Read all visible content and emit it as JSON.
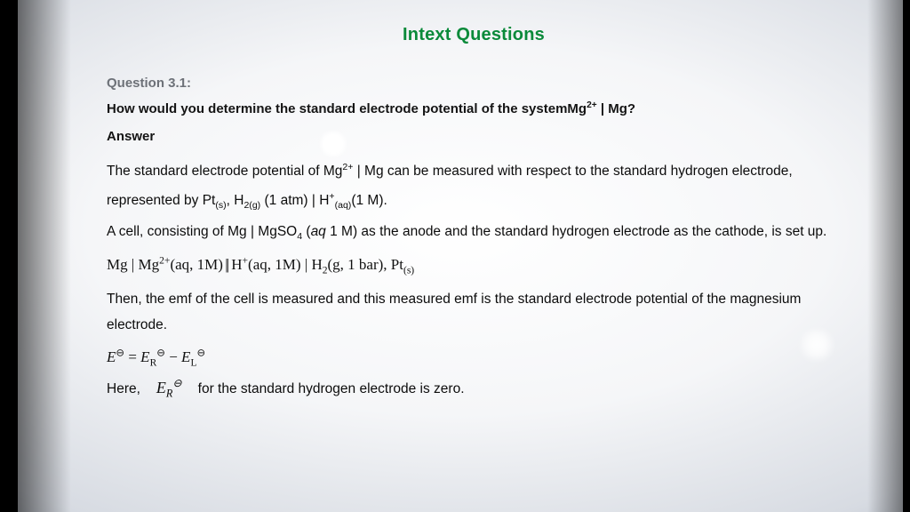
{
  "colors": {
    "title": "#0a8a3a",
    "question_number": "#6d7178",
    "body_text": "#0c0c0c",
    "page_bg_center": "#ffffff",
    "page_bg_edge": "#1c2028",
    "frame": "#000000"
  },
  "typography": {
    "body_family": "Verdana",
    "formula_family": "Cambria Math / Times New Roman",
    "title_size_pt": 15,
    "body_size_pt": 11.5,
    "line_height": 2.15
  },
  "title": "Intext Questions",
  "question_number": "Question 3.1:",
  "question_text_html": "How would you determine the standard electrode potential of the systemMg<sup>2+</sup> | Mg?",
  "answer_label": "Answer",
  "p1_html": "The standard electrode potential of Mg<sup>2+</sup> | Mg can be measured with respect to the standard hydrogen electrode, represented by Pt<sub>(s)</sub>, H<sub>2(g)</sub> (1 atm) | H<sup>+</sup><sub>(aq)</sub>(1 M).",
  "p2_html": "A cell, consisting of Mg | MgSO<sub>4</sub> (<i>aq</i> 1 M) as the anode and the standard hydrogen electrode as the cathode, is set up.",
  "cell_notation_html": "Mg<span class=\"vbar\"> | </span>Mg<sup>2+</sup>(aq, 1M)<span class=\"dvbar\"> || </span>H<sup>+</sup>(aq, 1M)<span class=\"vbar\"> | </span>H<sub>2</sub>(g, 1 bar), Pt<sub>(s)</sub>",
  "p3": "Then, the emf of the cell is measured and this measured emf is the standard electrode potential of the magnesium electrode.",
  "eq_html": "<span class=\"ital\">E</span><sup>⊖</sup> = <span class=\"ital\">E</span><sub>R</sub><sup>⊖</sup> − <span class=\"ital\">E</span><sub>L</sub><sup>⊖</sup>",
  "here_label": "Here,",
  "here_symbol_html": "<span class=\"ital\">E</span><sub>R</sub><sup>⊖</sup>",
  "here_rest": "for the standard hydrogen electrode is zero."
}
